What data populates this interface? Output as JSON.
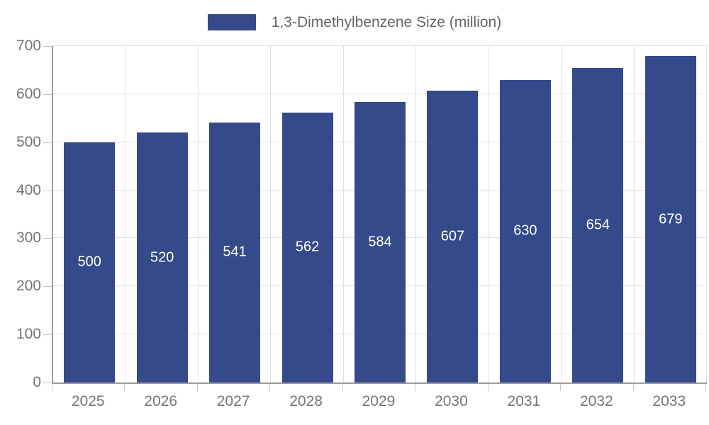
{
  "chart_data": {
    "type": "bar",
    "title": "1,3-Dimethylbenzene Size (million)",
    "legend_position": "top",
    "categories": [
      "2025",
      "2026",
      "2027",
      "2028",
      "2029",
      "2030",
      "2031",
      "2032",
      "2033"
    ],
    "values": [
      500,
      520,
      541,
      562,
      584,
      607,
      630,
      654,
      679
    ],
    "xlabel": "",
    "ylabel": "",
    "ylim": [
      0,
      700
    ],
    "ytick_step": 100,
    "ytick_labels": [
      "0",
      "100",
      "200",
      "300",
      "400",
      "500",
      "600",
      "700"
    ],
    "grid": true,
    "bar_color": "#344a8a",
    "bar_label_color": "#ffffff",
    "axis_text_color": "#757575",
    "legend_text_color": "#666666",
    "grid_color": "#e0e0e0",
    "axis_line_color": "#9a9a9a"
  }
}
